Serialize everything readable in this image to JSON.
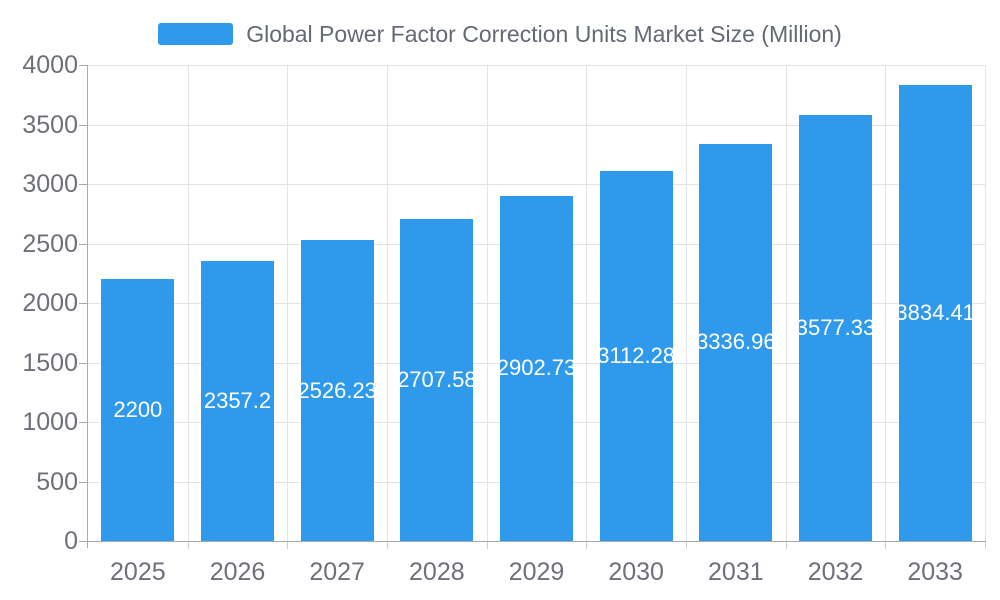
{
  "legend": {
    "label": "Global Power Factor Correction Units Market Size (Million)"
  },
  "chart_data": {
    "type": "bar",
    "title": "Global Power Factor Correction Units Market Size (Million)",
    "categories": [
      "2025",
      "2026",
      "2027",
      "2028",
      "2029",
      "2030",
      "2031",
      "2032",
      "2033"
    ],
    "series": [
      {
        "name": "Global Power Factor Correction Units Market Size (Million)",
        "values": [
          2200,
          2357.2,
          2526.23,
          2707.58,
          2902.73,
          3112.28,
          3336.96,
          3577.33,
          3834.41
        ]
      }
    ],
    "xlabel": "",
    "ylabel": "",
    "ylim": [
      0,
      4000
    ],
    "y_ticks": [
      0,
      500,
      1000,
      1500,
      2000,
      2500,
      3000,
      3500,
      4000
    ],
    "grid": true,
    "legend_position": "top",
    "value_labels_position": "inside-center"
  },
  "colors": {
    "bar": "#2F9AEC",
    "bar_value_label": "#FFFFFF",
    "axis_text": "#6E7079",
    "legend_text": "#646A73",
    "grid_line": "#E2E4E9",
    "axis_line": "#A6A9AD",
    "boundary_tick": "#CCCFD4",
    "background": "#FFFFFF"
  }
}
